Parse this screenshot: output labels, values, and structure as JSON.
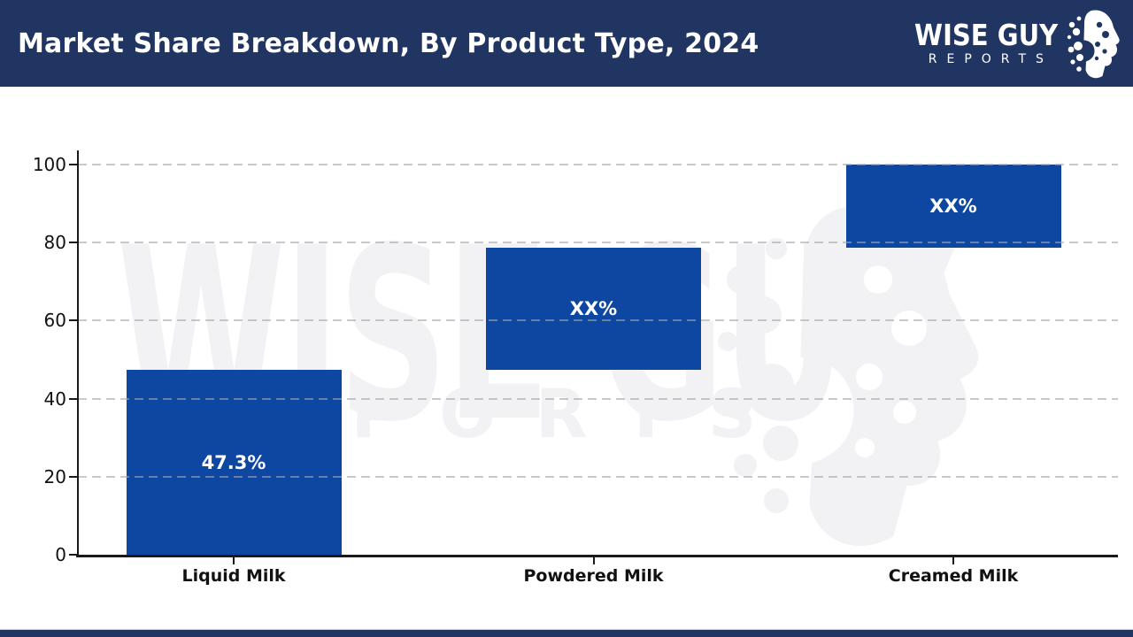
{
  "header": {
    "title": "Market Share Breakdown, By Product Type, 2024",
    "logo": {
      "line1": "WISE GUY",
      "line2": "REPORTS",
      "face_icon": "dotted-head-profile"
    }
  },
  "watermark": {
    "line1": "WISE GUY",
    "line2": "REPORTS",
    "face_icon": "dotted-head-profile"
  },
  "chart_data": {
    "type": "bar",
    "subtype": "waterfall-floating-bars",
    "title": "Market Share Breakdown, By Product Type, 2024",
    "xlabel": "",
    "ylabel": "",
    "categories": [
      "Liquid Milk",
      "Powdered Milk",
      "Creamed Milk"
    ],
    "bars": [
      {
        "category": "Liquid Milk",
        "start": 0,
        "end": 47.3,
        "label": "47.3%"
      },
      {
        "category": "Powdered Milk",
        "start": 47.3,
        "end": 78.6,
        "label": "XX%"
      },
      {
        "category": "Creamed Milk",
        "start": 78.6,
        "end": 100,
        "label": "XX%"
      }
    ],
    "yticks": [
      0,
      20,
      40,
      60,
      80,
      100
    ],
    "ylim": [
      0,
      103.6
    ],
    "grid": "horizontal-dashed",
    "legend_position": "none",
    "bar_color": "#0d47a1",
    "value_label_color": "#ffffff"
  },
  "colors": {
    "header_bg": "#213562",
    "footer_bg": "#213562",
    "bar": "#0d47a1",
    "axis": "#1a1a1a",
    "gridline": "#c9c9cd",
    "watermark": "#f2f2f5",
    "title_text": "#ffffff"
  }
}
